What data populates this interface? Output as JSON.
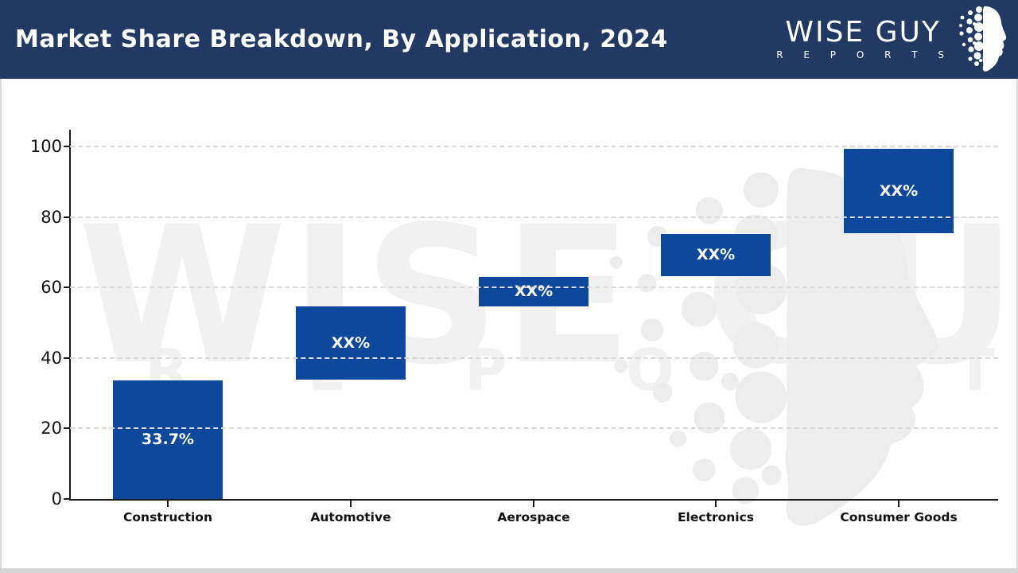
{
  "header": {
    "title": "Market Share Breakdown, By Application, 2024",
    "logo": {
      "line1": "WISE GUY",
      "line2": "R E P O R T S",
      "icon": "dotted-head-profile-icon"
    },
    "background_color": "#213963"
  },
  "watermark": {
    "line1": "WISE GUY",
    "line2": "R E P O R T S",
    "icon": "dotted-head-profile-watermark",
    "color": "#f1f1f1"
  },
  "colors": {
    "bar": "#0d489c",
    "bar_label": "#ffffff",
    "grid": "#d9d9d9",
    "axis": "#1a1a1a",
    "tick_text": "#111111",
    "frame_edge": "#d9d9d9"
  },
  "chart_data": {
    "type": "bar",
    "subtype": "waterfall",
    "title": "Market Share Breakdown, By Application, 2024",
    "xlabel": "",
    "ylabel": "",
    "ylim": [
      0,
      105
    ],
    "yticks": [
      0,
      20,
      40,
      60,
      80,
      100
    ],
    "grid": "dashed horizontal, drawn over bars",
    "legend": "none",
    "categories": [
      "Construction",
      "Automotive",
      "Aerospace",
      "Electronics",
      "Consumer Goods"
    ],
    "segments": [
      {
        "category": "Construction",
        "start": 0,
        "end": 33.7,
        "label": "33.7%"
      },
      {
        "category": "Automotive",
        "start": 33.9,
        "end": 54.6,
        "label": "XX%"
      },
      {
        "category": "Aerospace",
        "start": 54.7,
        "end": 63.0,
        "label": "XX%"
      },
      {
        "category": "Electronics",
        "start": 63.2,
        "end": 75.2,
        "label": "XX%"
      },
      {
        "category": "Consumer Goods",
        "start": 75.4,
        "end": 99.4,
        "label": "XX%"
      }
    ]
  }
}
